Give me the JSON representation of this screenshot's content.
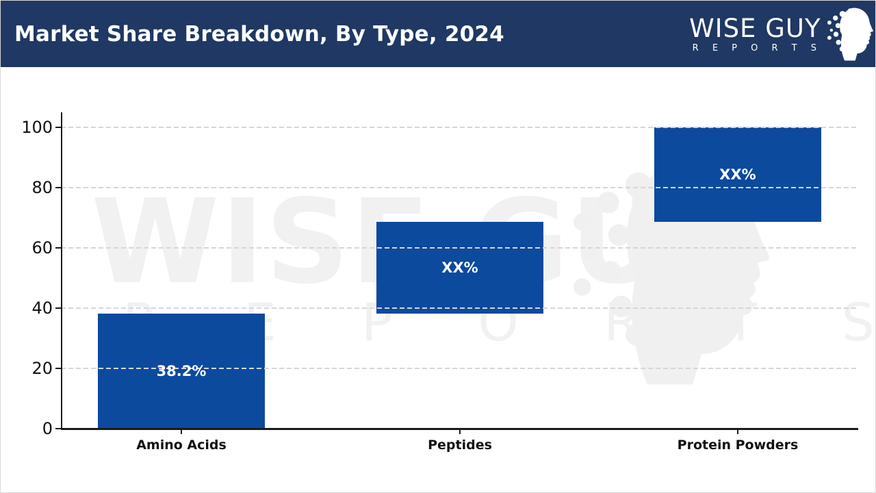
{
  "header": {
    "title": "Market Share Breakdown, By Type, 2024",
    "logo": {
      "line1": "WISE GUY",
      "line2": "R E P O R T S"
    }
  },
  "watermark": {
    "line1": "WISE GUY",
    "line2": "R E P O R T S"
  },
  "colors": {
    "header_bg": "#1F3864",
    "bar": "#0C4A9E",
    "grid": "#D6D6D6",
    "axis": "#1A1A1A",
    "bar_label_text": "#FFFFFF",
    "watermark": "#F1F1F1"
  },
  "chart_data": {
    "type": "bar",
    "subtype": "waterfall",
    "title": "Market Share Breakdown, By Type, 2024",
    "categories": [
      "Amino Acids",
      "Peptides",
      "Protein Powders"
    ],
    "segments": [
      {
        "category": "Amino Acids",
        "start": 0,
        "end": 38.2,
        "label": "38.2%"
      },
      {
        "category": "Peptides",
        "start": 38.2,
        "end": 68.5,
        "label": "XX%"
      },
      {
        "category": "Protein Powders",
        "start": 68.5,
        "end": 100,
        "label": "XX%"
      }
    ],
    "xlabel": "",
    "ylabel": "",
    "yticks": [
      0,
      20,
      40,
      60,
      80,
      100
    ],
    "ylim": [
      0,
      104.8
    ],
    "grid": "dashed-horizontal-over-bars",
    "legend": "none"
  }
}
